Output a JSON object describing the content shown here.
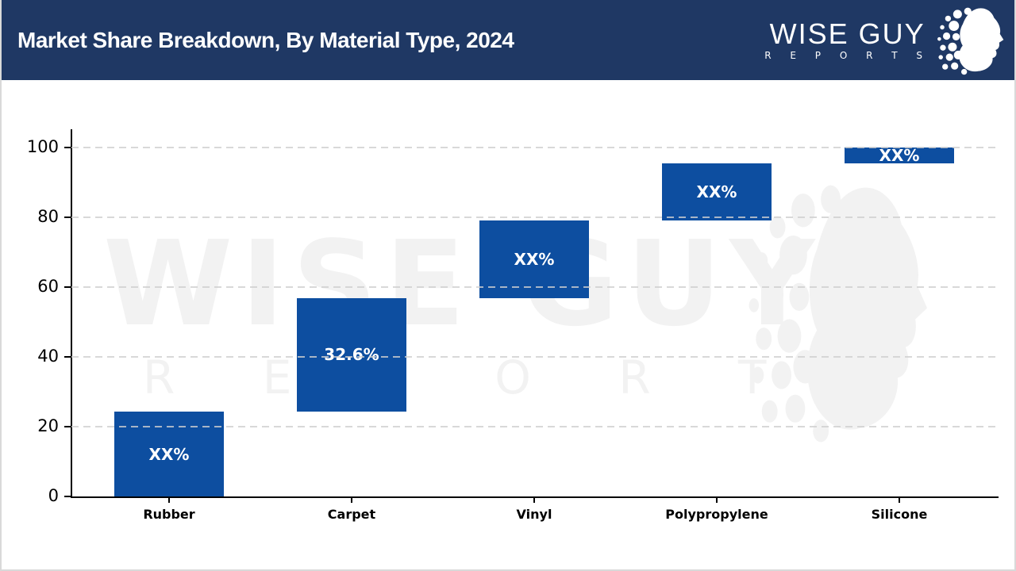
{
  "header": {
    "title": "Market Share Breakdown, By Material Type, 2024",
    "logo": {
      "line1": "WISE GUY",
      "line2": "R E P O R T S"
    }
  },
  "watermark": {
    "line1": "WISE GUY",
    "line2": "R E P O R T S"
  },
  "colors": {
    "header_bg": "#1f3864",
    "bar": "#0d4ea0",
    "grid": "#cfcfcf",
    "axis": "#000000",
    "bar_label": "#ffffff",
    "watermark": "#f2f2f2",
    "page_border": "#d9d9d9"
  },
  "chart_data": {
    "type": "bar",
    "subtype": "waterfall",
    "title": "Market Share Breakdown, By Material Type, 2024",
    "xlabel": "",
    "ylabel": "",
    "categories": [
      "Rubber",
      "Carpet",
      "Vinyl",
      "Polypropylene",
      "Silicone"
    ],
    "segments": [
      {
        "category": "Rubber",
        "start": 0,
        "end": 24.3,
        "value_estimate": 24.3,
        "label": "XX%"
      },
      {
        "category": "Carpet",
        "start": 24.3,
        "end": 56.9,
        "value_estimate": 32.6,
        "label": "32.6%"
      },
      {
        "category": "Vinyl",
        "start": 56.9,
        "end": 79.2,
        "value_estimate": 22.3,
        "label": "XX%"
      },
      {
        "category": "Polypropylene",
        "start": 79.2,
        "end": 95.5,
        "value_estimate": 16.3,
        "label": "XX%"
      },
      {
        "category": "Silicone",
        "start": 95.5,
        "end": 100,
        "value_estimate": 4.5,
        "label": "XX%"
      }
    ],
    "yticks": [
      0,
      20,
      40,
      60,
      80,
      100
    ],
    "ylim": [
      0,
      100
    ],
    "grid": "horizontal-dashed",
    "legend": "none"
  }
}
